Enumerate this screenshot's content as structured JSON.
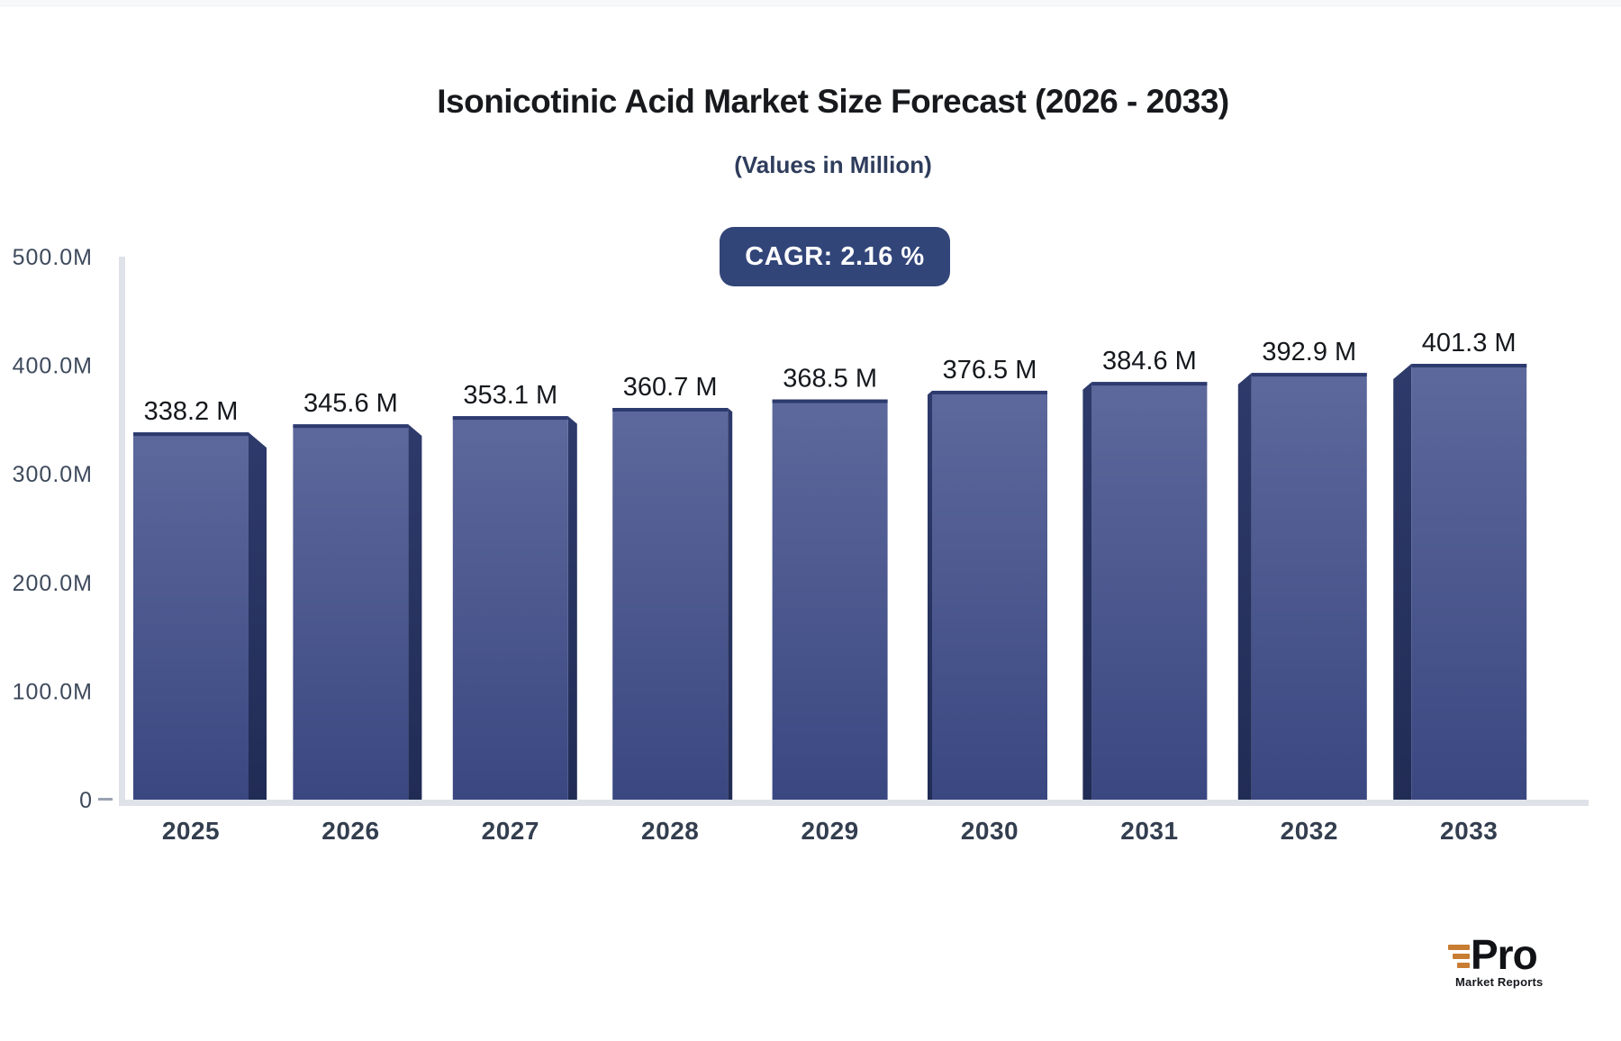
{
  "header": {
    "title": "Isonicotinic Acid Market Size Forecast (2026 - 2033)",
    "subtitle": "(Values in Million)"
  },
  "badge": {
    "text": "CAGR: 2.16 %"
  },
  "chart_data": {
    "type": "bar",
    "title": "Isonicotinic Acid Market Size Forecast (2026 - 2033)",
    "subtitle": "(Values in Million)",
    "categories": [
      "2025",
      "2026",
      "2027",
      "2028",
      "2029",
      "2030",
      "2031",
      "2032",
      "2033"
    ],
    "values": [
      338.2,
      345.6,
      353.1,
      360.7,
      368.5,
      376.5,
      384.6,
      392.9,
      401.3
    ],
    "value_label_suffix": " M",
    "y_tick_values": [
      0,
      100,
      200,
      300,
      400,
      500
    ],
    "y_tick_labels": [
      "0",
      "100.0M",
      "200.0M",
      "300.0M",
      "400.0M",
      "500.0M"
    ],
    "ylim": [
      0,
      500
    ],
    "xlabel": "",
    "ylabel": "",
    "grid": false,
    "legend": false,
    "cagr_percent": 2.16
  },
  "colors": {
    "bar_face_top": "#5d699c",
    "bar_face_bottom": "#3a4781",
    "bar_side_top": "#2e3a6b",
    "bar_side_bottom": "#212c55",
    "bar_top_edge": "#2c3a6e",
    "axis_line": "#dfe2e8",
    "zero_dash": "#9aa3b2",
    "badge_bg": "#324579",
    "badge_text": "#ffffff",
    "value_label": "#15181d",
    "y_tick_label": "#3e4a5c",
    "x_tick_label": "#333e4f",
    "logo_orange": "#c87d33"
  },
  "logo": {
    "brand": "Pro",
    "tagline": "Market Reports"
  }
}
